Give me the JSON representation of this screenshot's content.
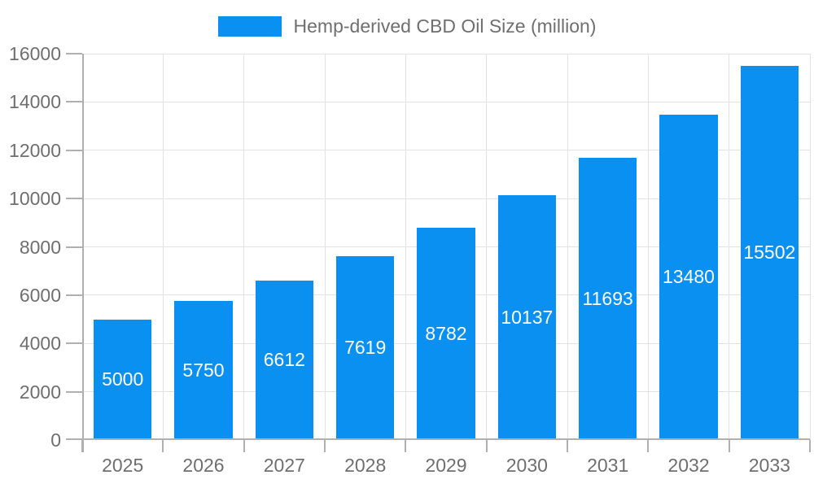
{
  "legend": {
    "label": "Hemp-derived CBD Oil Size (million)"
  },
  "chart_data": {
    "type": "bar",
    "title": "Hemp-derived CBD Oil Size (million)",
    "series_name": "Hemp-derived CBD Oil Size (million)",
    "categories": [
      "2025",
      "2026",
      "2027",
      "2028",
      "2029",
      "2030",
      "2031",
      "2032",
      "2033"
    ],
    "values": [
      5000,
      5750,
      6612,
      7619,
      8782,
      10137,
      11693,
      13480,
      15502
    ],
    "xlabel": "",
    "ylabel": "",
    "ylim": [
      0,
      16000
    ],
    "ytick_step": 2000,
    "yticks": [
      0,
      2000,
      4000,
      6000,
      8000,
      10000,
      12000,
      14000,
      16000
    ],
    "grid": true,
    "legend_position": "top",
    "bar_labels_inside": true,
    "colors": {
      "bar": "#0a90f0",
      "bar_label": "#ffffff",
      "grid": "#e3e3e3",
      "axis": "#b0b0b0",
      "tick_label": "#6f6f6f"
    }
  }
}
